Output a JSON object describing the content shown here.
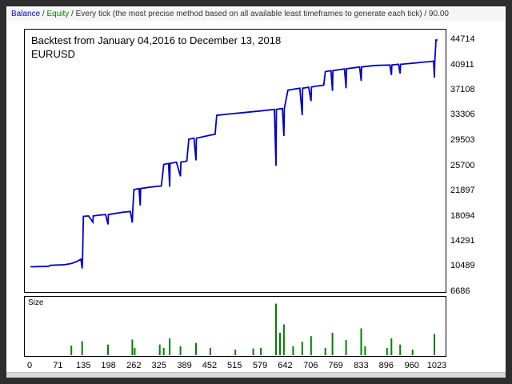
{
  "header": {
    "segments": [
      {
        "text": "Balance",
        "color": "#0000ff"
      },
      {
        "text": " / ",
        "color": "#333333"
      },
      {
        "text": "Equity",
        "color": "#008000"
      },
      {
        "text": " / Every tick (the most precise method based on all available least timeframes to generate each tick) / 90.00",
        "color": "#333333"
      }
    ]
  },
  "annotation": {
    "line1": "Backtest from January 04,2016 to December 13, 2018",
    "line2": "EURUSD"
  },
  "size_panel": {
    "label": "Size"
  },
  "chart_data": {
    "type": "line",
    "title": "Backtest balance curve EURUSD January 04,2016 to December 13, 2018",
    "legend": [
      "Balance",
      "Equity"
    ],
    "line_color": "#0000c8",
    "bar_color": "#008000",
    "x_range": [
      0,
      1023
    ],
    "ylim": [
      6686,
      44714
    ],
    "grid": false,
    "y_ticks": [
      44714,
      40911,
      37108,
      33306,
      29503,
      25700,
      21897,
      18094,
      14291,
      10489,
      6686
    ],
    "x_ticks": [
      0,
      71,
      135,
      198,
      262,
      325,
      389,
      452,
      515,
      579,
      642,
      706,
      769,
      833,
      896,
      960,
      1023
    ],
    "balance_points": [
      [
        0,
        10489
      ],
      [
        25,
        10530
      ],
      [
        46,
        10570
      ],
      [
        50,
        10720
      ],
      [
        86,
        10800
      ],
      [
        103,
        10980
      ],
      [
        116,
        11260
      ],
      [
        127,
        11620
      ],
      [
        130,
        10230
      ],
      [
        131,
        11620
      ],
      [
        133,
        18094
      ],
      [
        146,
        18170
      ],
      [
        157,
        17230
      ],
      [
        158,
        18170
      ],
      [
        171,
        18270
      ],
      [
        189,
        18370
      ],
      [
        195,
        16890
      ],
      [
        196,
        18370
      ],
      [
        213,
        18540
      ],
      [
        231,
        18710
      ],
      [
        251,
        18840
      ],
      [
        256,
        17140
      ],
      [
        257,
        18840
      ],
      [
        260,
        22140
      ],
      [
        273,
        22290
      ],
      [
        276,
        19740
      ],
      [
        277,
        22290
      ],
      [
        295,
        22470
      ],
      [
        315,
        22610
      ],
      [
        329,
        22690
      ],
      [
        335,
        25940
      ],
      [
        347,
        26090
      ],
      [
        350,
        22570
      ],
      [
        351,
        26090
      ],
      [
        367,
        26270
      ],
      [
        377,
        24140
      ],
      [
        378,
        26290
      ],
      [
        393,
        26440
      ],
      [
        398,
        29740
      ],
      [
        411,
        29890
      ],
      [
        416,
        26540
      ],
      [
        417,
        29890
      ],
      [
        435,
        30140
      ],
      [
        454,
        30370
      ],
      [
        464,
        30490
      ],
      [
        468,
        33340
      ],
      [
        487,
        33470
      ],
      [
        507,
        33590
      ],
      [
        527,
        33710
      ],
      [
        547,
        33830
      ],
      [
        567,
        33950
      ],
      [
        587,
        34070
      ],
      [
        603,
        34170
      ],
      [
        613,
        34250
      ],
      [
        617,
        25740
      ],
      [
        618,
        34250
      ],
      [
        633,
        34370
      ],
      [
        637,
        30240
      ],
      [
        638,
        34370
      ],
      [
        647,
        37140
      ],
      [
        661,
        37290
      ],
      [
        677,
        37440
      ],
      [
        683,
        33390
      ],
      [
        684,
        37440
      ],
      [
        699,
        37590
      ],
      [
        705,
        35490
      ],
      [
        706,
        37610
      ],
      [
        721,
        37770
      ],
      [
        737,
        37910
      ],
      [
        741,
        39940
      ],
      [
        755,
        40090
      ],
      [
        759,
        37040
      ],
      [
        760,
        40090
      ],
      [
        775,
        40240
      ],
      [
        789,
        40340
      ],
      [
        793,
        37440
      ],
      [
        794,
        40370
      ],
      [
        811,
        40510
      ],
      [
        827,
        40640
      ],
      [
        831,
        38540
      ],
      [
        832,
        40640
      ],
      [
        849,
        40770
      ],
      [
        867,
        40870
      ],
      [
        885,
        40910
      ],
      [
        903,
        40940
      ],
      [
        907,
        39440
      ],
      [
        908,
        40950
      ],
      [
        925,
        41040
      ],
      [
        929,
        39640
      ],
      [
        930,
        41050
      ],
      [
        947,
        41140
      ],
      [
        965,
        41240
      ],
      [
        983,
        41340
      ],
      [
        1001,
        41440
      ],
      [
        1013,
        41510
      ],
      [
        1015,
        39040
      ],
      [
        1016,
        41510
      ],
      [
        1019,
        44714
      ],
      [
        1023,
        44714
      ]
    ],
    "size_bars": [
      [
        103,
        0.17
      ],
      [
        130,
        0.25
      ],
      [
        195,
        0.19
      ],
      [
        256,
        0.28
      ],
      [
        262,
        0.13
      ],
      [
        325,
        0.19
      ],
      [
        335,
        0.13
      ],
      [
        350,
        0.3
      ],
      [
        377,
        0.16
      ],
      [
        416,
        0.22
      ],
      [
        452,
        0.13
      ],
      [
        515,
        0.1
      ],
      [
        560,
        0.12
      ],
      [
        579,
        0.13
      ],
      [
        617,
        0.92
      ],
      [
        627,
        0.4
      ],
      [
        637,
        0.55
      ],
      [
        660,
        0.16
      ],
      [
        683,
        0.24
      ],
      [
        705,
        0.34
      ],
      [
        741,
        0.13
      ],
      [
        759,
        0.4
      ],
      [
        793,
        0.27
      ],
      [
        831,
        0.48
      ],
      [
        841,
        0.16
      ],
      [
        896,
        0.13
      ],
      [
        907,
        0.3
      ],
      [
        929,
        0.19
      ],
      [
        960,
        0.1
      ],
      [
        1015,
        0.38
      ]
    ]
  }
}
